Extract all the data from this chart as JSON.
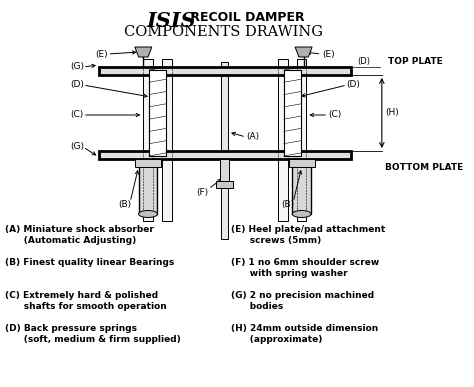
{
  "title1": "ISIS",
  "title1b": " RECOIL DAMPER",
  "title2": "COMPONENTS DRAWING",
  "bg_color": "#ffffff",
  "line_color": "#000000",
  "top_plate_label": "TOP PLATE",
  "bottom_plate_label": "BOTTOM PLATE",
  "left_descs": [
    "(A) Miniature shock absorber\n      (Automatic Adjusting)",
    "(B) Finest quality linear Bearings",
    "(C) Extremely hard & polished\n      shafts for smooth operation",
    "(D) Back pressure springs\n      (soft, medium & firm supplied)"
  ],
  "right_descs": [
    "(E) Heel plate/pad attachment\n      screws (5mm)",
    "(F) 1 no 6mm shoulder screw\n      with spring washer",
    "(G) 2 no precision machined\n      bodies",
    "(H) 24mm outside dimension\n      (approximate)"
  ]
}
